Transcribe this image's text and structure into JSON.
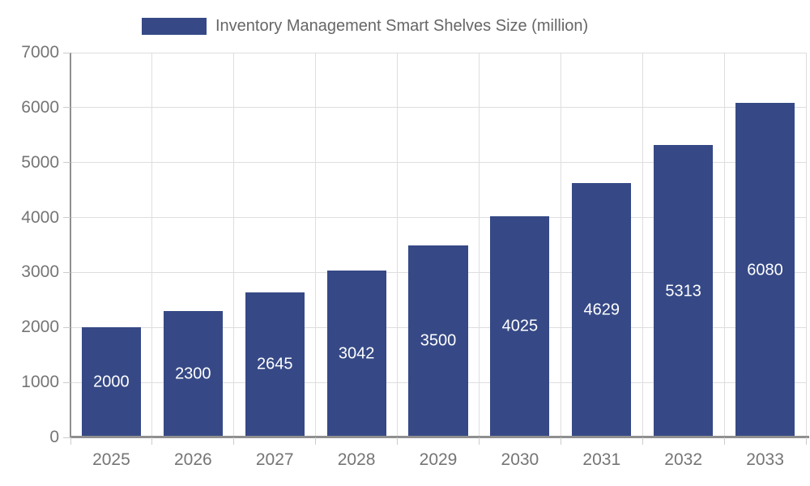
{
  "chart_data": {
    "type": "bar",
    "title": "Inventory Management Smart Shelves Size (million)",
    "categories": [
      "2025",
      "2026",
      "2027",
      "2028",
      "2029",
      "2030",
      "2031",
      "2032",
      "2033"
    ],
    "values": [
      2000,
      2300,
      2645,
      3042,
      3500,
      4025,
      4629,
      5313,
      6080
    ],
    "xlabel": "",
    "ylabel": "",
    "ylim": [
      0,
      7000
    ],
    "ytick_step": 1000,
    "grid": true,
    "legend_position": "top",
    "bar_labels": "inside-center"
  },
  "colors": {
    "bar": "#364986",
    "bar_label": "#ffffff",
    "grid": "#dedede",
    "axis": "#8f8f8f",
    "tick": "#cccccc",
    "tick_label": "#757575",
    "legend_text": "#666666",
    "background": "#ffffff"
  }
}
